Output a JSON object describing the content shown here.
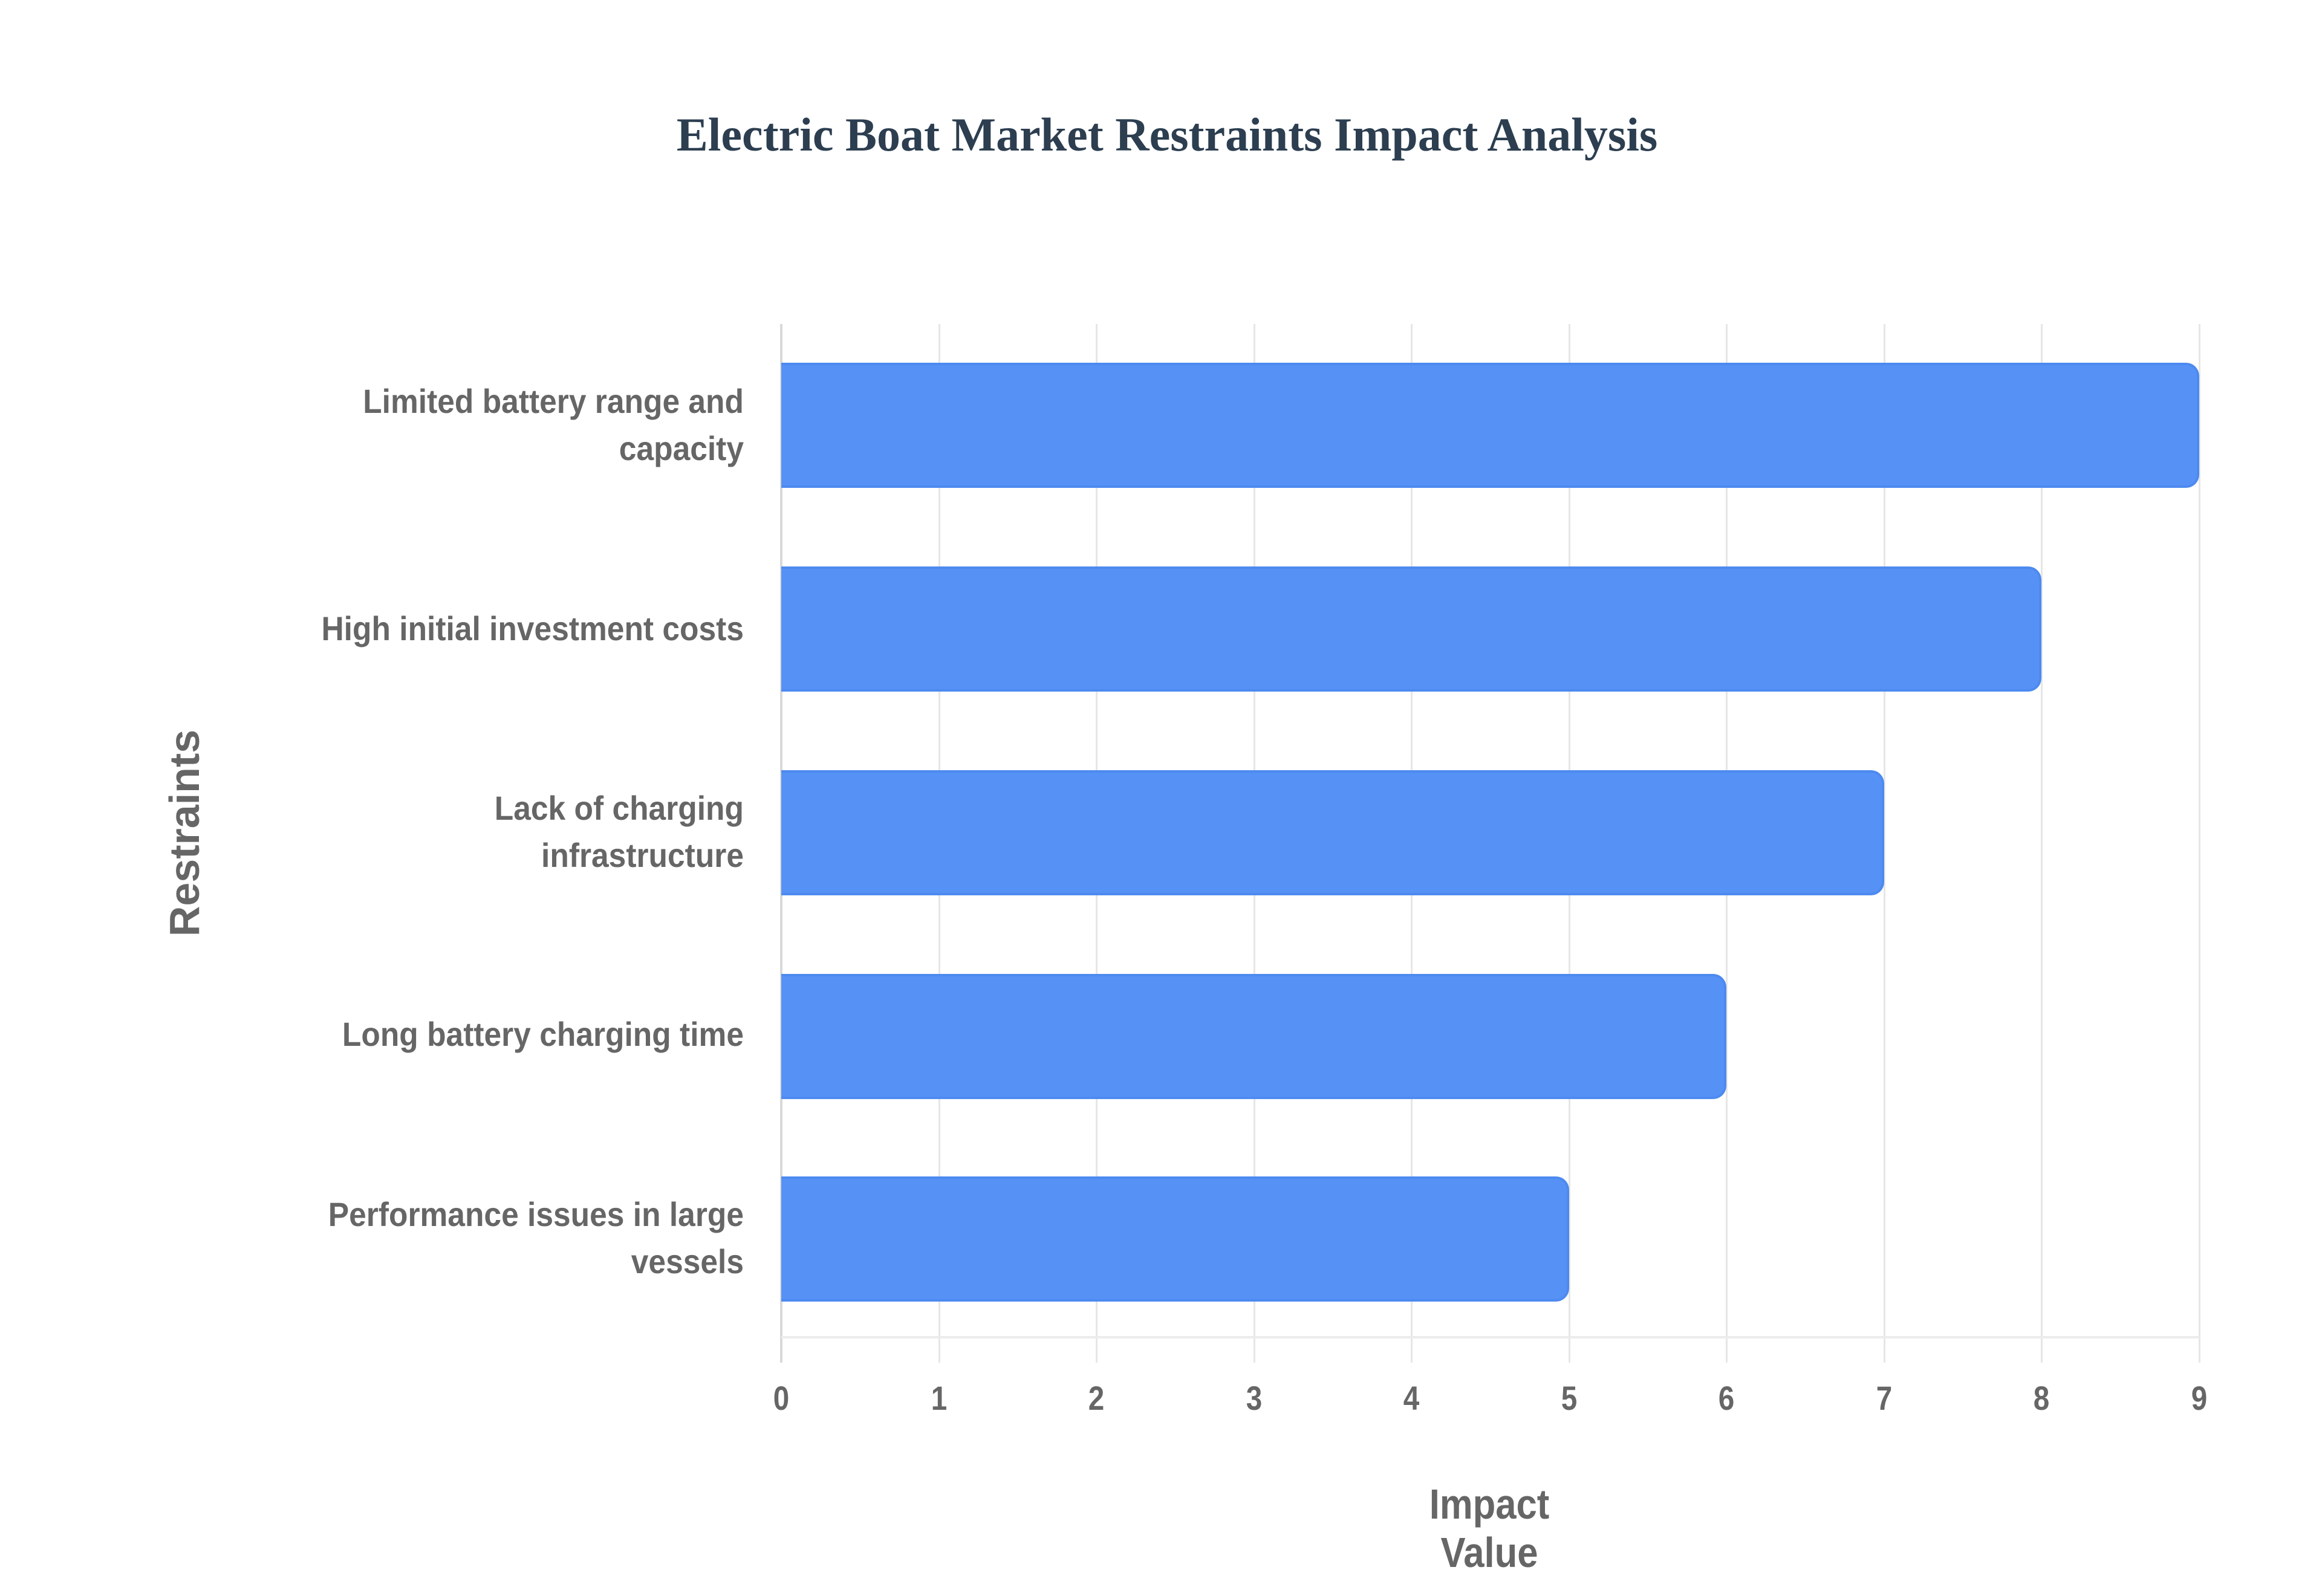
{
  "chart_data": {
    "type": "bar",
    "orientation": "horizontal",
    "title": "Electric Boat Market Restraints Impact Analysis",
    "xlabel": "Impact Value",
    "ylabel": "Restraints",
    "categories": [
      "Limited battery range and capacity",
      "High initial investment costs",
      "Lack of charging infrastructure",
      "Long battery charging time",
      "Performance issues in large vessels"
    ],
    "values": [
      9,
      8,
      7,
      6,
      5
    ],
    "xlim": [
      0,
      9
    ],
    "x_ticks": [
      "0",
      "1",
      "2",
      "3",
      "4",
      "5",
      "6",
      "7",
      "8",
      "9"
    ],
    "grid": true,
    "legend": null,
    "bar_color": "#5691f6",
    "bar_border_color": "#4d8af0"
  },
  "labels": {
    "cat0_line1": "Limited battery range and",
    "cat0_line2": "capacity",
    "cat1_line1": "High initial investment costs",
    "cat2_line1": "Lack of charging",
    "cat2_line2": "infrastructure",
    "cat3_line1": "Long battery charging time",
    "cat4_line1": "Performance issues in large",
    "cat4_line2": "vessels"
  }
}
